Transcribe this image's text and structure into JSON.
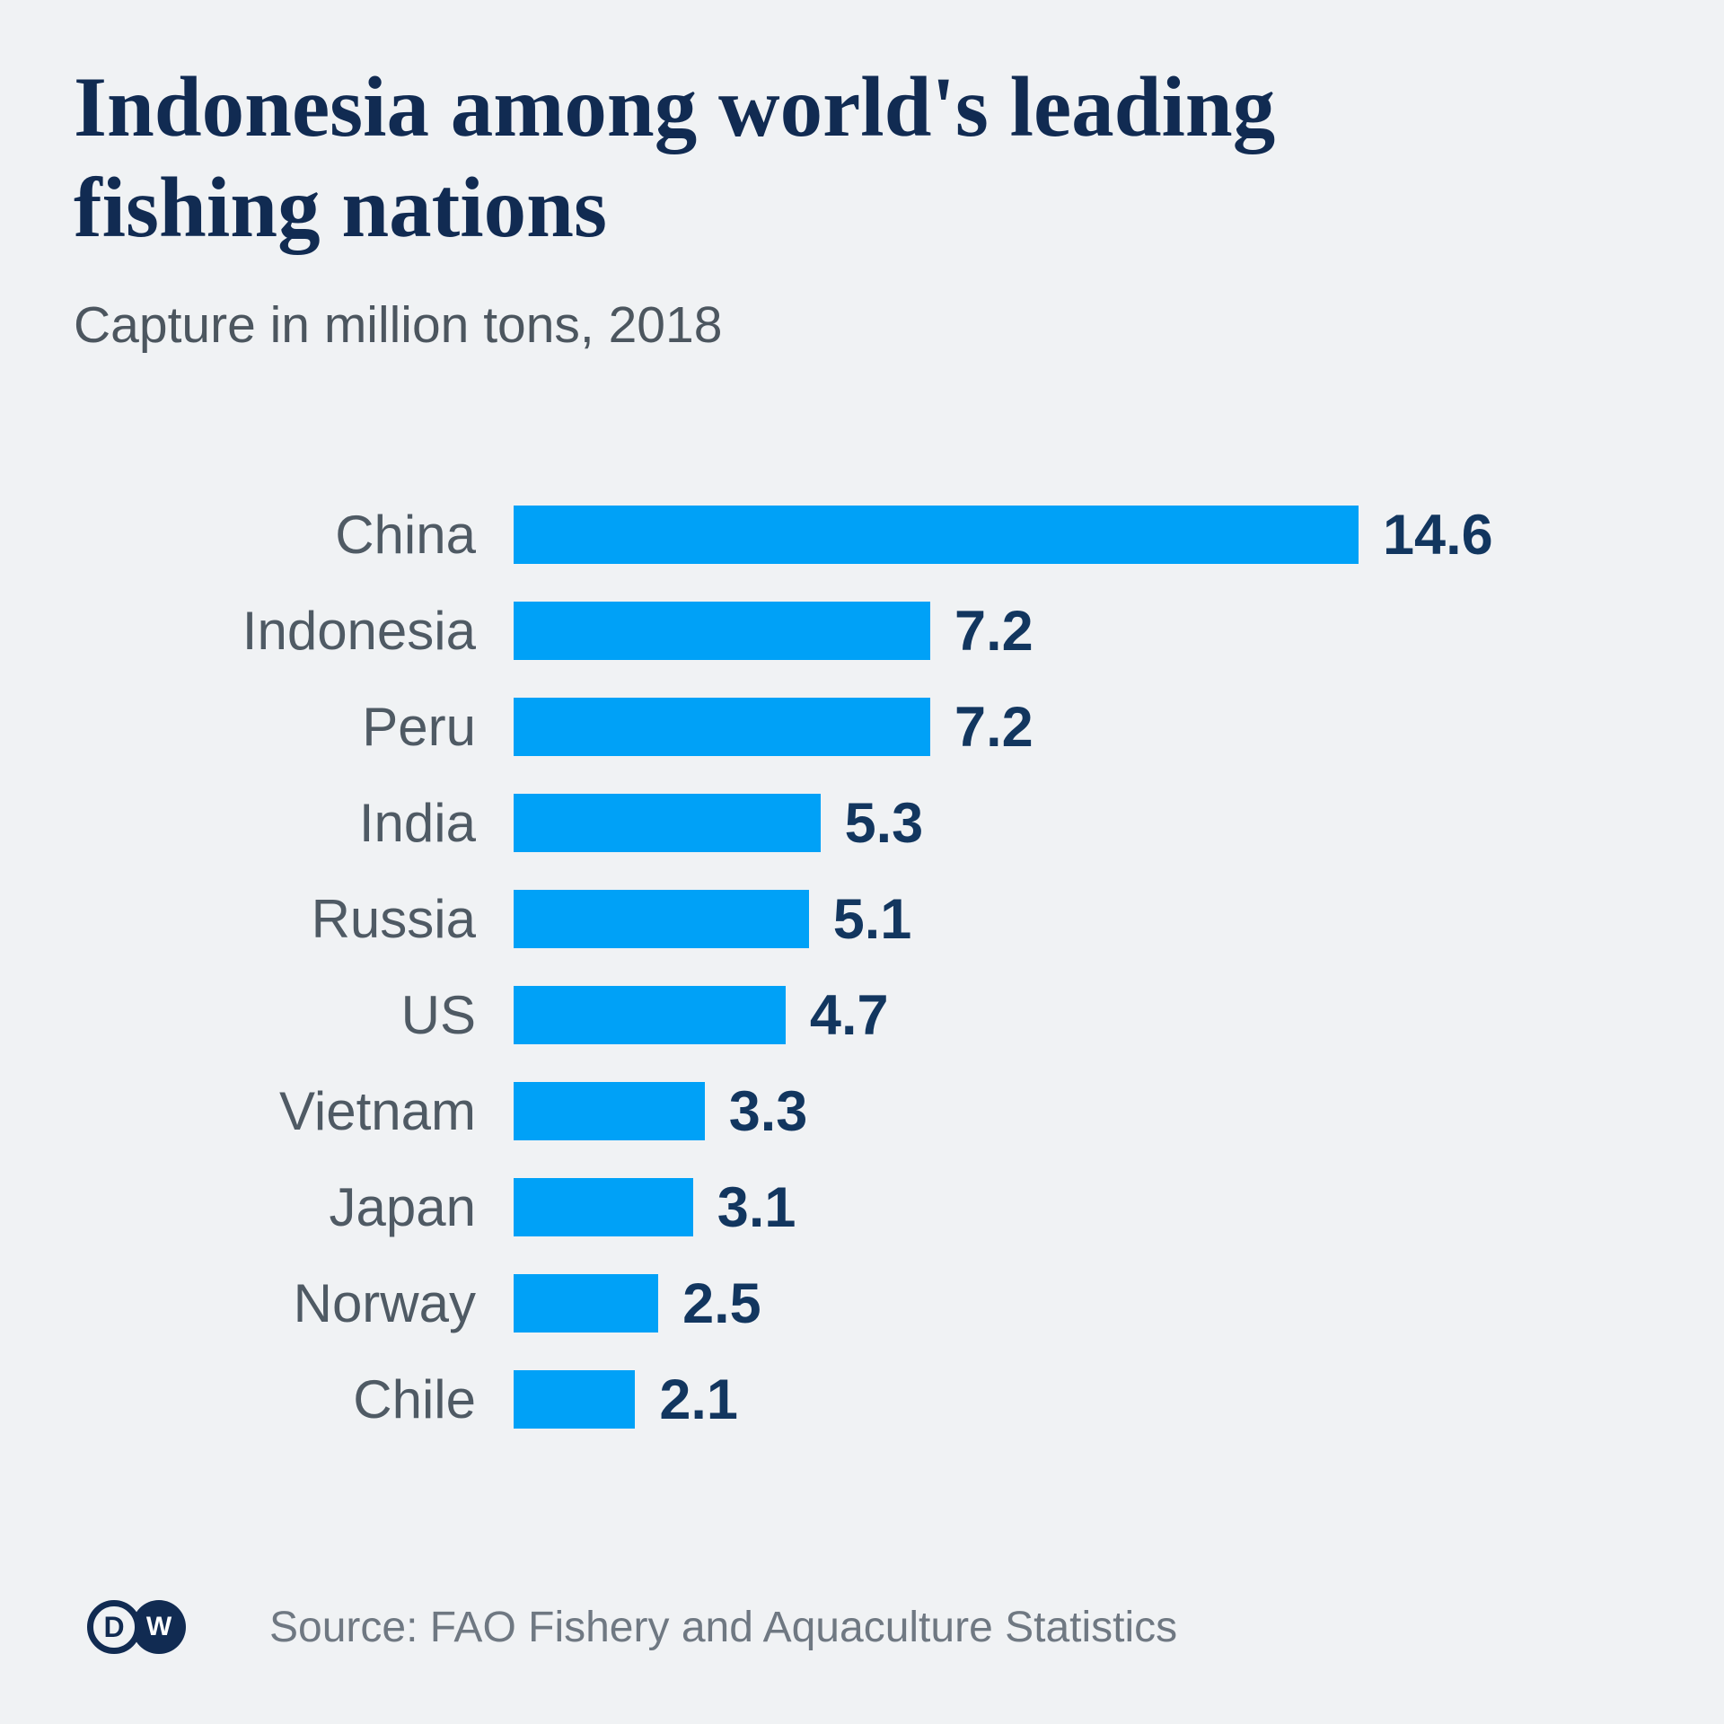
{
  "header": {
    "title_lines": [
      "Indonesia among world's leading",
      "fishing nations"
    ],
    "subtitle": "Capture in million tons, 2018"
  },
  "chart_data": {
    "type": "bar",
    "orientation": "horizontal",
    "title": "Indonesia among world's leading fishing nations",
    "subtitle": "Capture in million tons, 2018",
    "xlabel": "",
    "ylabel": "",
    "categories": [
      "China",
      "Indonesia",
      "Peru",
      "India",
      "Russia",
      "US",
      "Vietnam",
      "Japan",
      "Norway",
      "Chile"
    ],
    "values": [
      14.6,
      7.2,
      7.2,
      5.3,
      5.1,
      4.7,
      3.3,
      3.1,
      2.5,
      2.1
    ],
    "value_labels_shown": true,
    "xlim": [
      0,
      14.6
    ],
    "grid": false,
    "legend": false,
    "bar_color": "#00a1f7",
    "category_label_color": "#4f5a64",
    "value_label_color": "#12365f",
    "background_color": "#f0f2f4"
  },
  "footer": {
    "source": "Source: FAO Fishery and Aquaculture Statistics",
    "logo_d": "D",
    "logo_w": "W"
  },
  "colors": {
    "title": "#112b52",
    "subtitle": "#4c565f",
    "source": "#6f7882",
    "logo_navy": "#112b52"
  }
}
